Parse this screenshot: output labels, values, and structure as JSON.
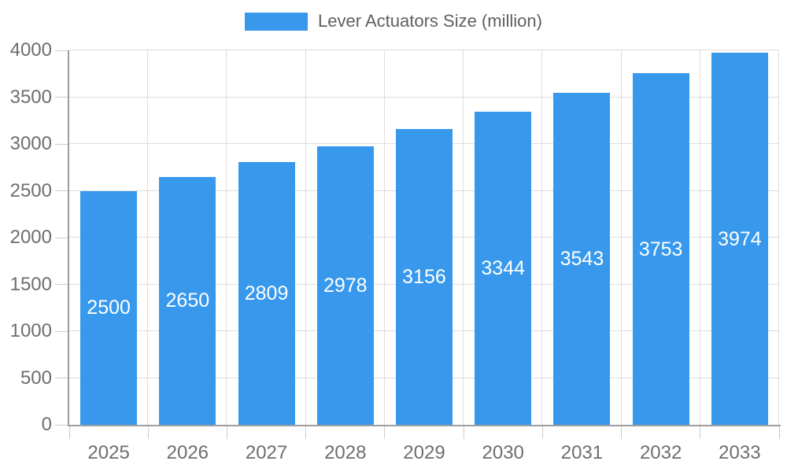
{
  "legend": {
    "label": "Lever Actuators Size (million)"
  },
  "chart_data": {
    "type": "bar",
    "title": "Lever Actuators Size (million)",
    "categories": [
      "2025",
      "2026",
      "2027",
      "2028",
      "2029",
      "2030",
      "2031",
      "2032",
      "2033"
    ],
    "values": [
      2500,
      2650,
      2809,
      2978,
      3156,
      3344,
      3543,
      3753,
      3974
    ],
    "series_name": "Lever Actuators Size (million)",
    "xlabel": "",
    "ylabel": "",
    "ylim": [
      0,
      4000
    ],
    "yticks": [
      0,
      500,
      1000,
      1500,
      2000,
      2500,
      3000,
      3500,
      4000
    ],
    "grid": true,
    "bar_labels_shown": true,
    "bar_label_position": "center",
    "legend_position": "top-center"
  },
  "colors": {
    "bar": "#3899ec",
    "bar_label": "#ffffff",
    "grid": "#dddddd",
    "axis": "#9e9e9e",
    "tick": "#cccccc",
    "axis_text": "#6e6e6e",
    "legend_text": "#5f5f5f",
    "background": "#ffffff"
  }
}
